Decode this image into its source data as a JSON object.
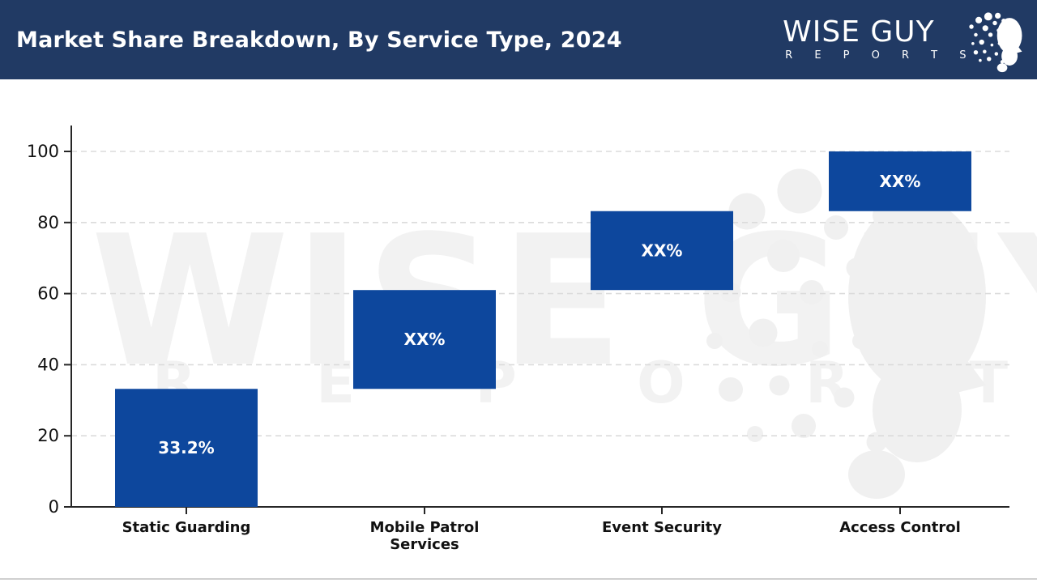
{
  "header": {
    "title": "Market Share Breakdown, By Service Type, 2024",
    "logo_line1": "WISE GUY",
    "logo_line2": "R E P O R T S"
  },
  "watermark": {
    "line1": "WISE GUY",
    "line2": "R E P O R T S"
  },
  "colors": {
    "header_bg": "#213A64",
    "bar": "#0D479D",
    "grid": "#DBDBDB",
    "axis": "#262626",
    "tick_text": "#111111",
    "bar_label_text": "#FFFFFF",
    "watermark": "#F2F2F2"
  },
  "chart_data": {
    "type": "bar",
    "subtype": "waterfall",
    "title": "Market Share Breakdown, By Service Type, 2024",
    "categories": [
      "Static Guarding",
      "Mobile Patrol\nServices",
      "Event Security",
      "Access Control"
    ],
    "values": [
      33.2,
      27.8,
      22.2,
      16.8
    ],
    "cumulative": [
      [
        0,
        33.2
      ],
      [
        33.2,
        61.0
      ],
      [
        61.0,
        83.2
      ],
      [
        83.2,
        100.0
      ]
    ],
    "bar_labels": [
      "33.2%",
      "XX%",
      "XX%",
      "XX%"
    ],
    "yticks": [
      0,
      20,
      40,
      60,
      80,
      100
    ],
    "ylim": [
      0,
      107
    ],
    "xlabel": "",
    "ylabel": "",
    "grid": "horizontal dashed",
    "legend": "none"
  }
}
